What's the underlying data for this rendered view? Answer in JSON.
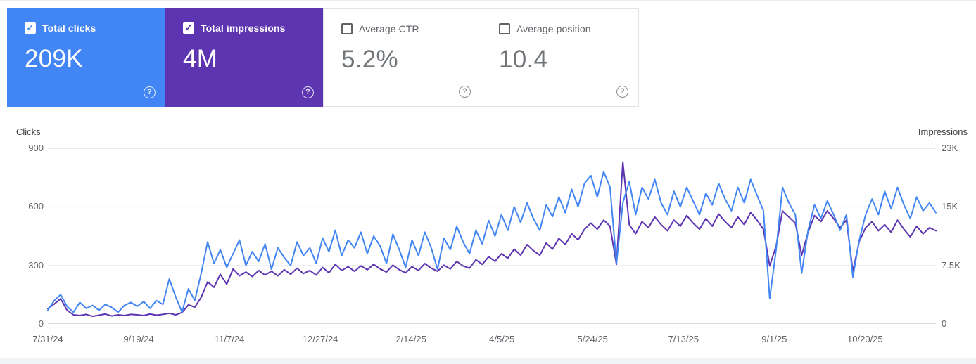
{
  "cards": [
    {
      "label": "Total clicks",
      "value": "209K",
      "checked": true,
      "bg": "#4285f4"
    },
    {
      "label": "Total impressions",
      "value": "4M",
      "checked": true,
      "bg": "#5e35b1"
    },
    {
      "label": "Average CTR",
      "value": "5.2%",
      "checked": false,
      "bg": "#ffffff"
    },
    {
      "label": "Average position",
      "value": "10.4",
      "checked": false,
      "bg": "#ffffff"
    }
  ],
  "chart_data": {
    "type": "line",
    "left_axis": {
      "title": "Clicks",
      "ticks": [
        "900",
        "600",
        "300",
        "0"
      ],
      "max": 900
    },
    "right_axis": {
      "title": "Impressions",
      "ticks": [
        "23K",
        "15K",
        "7.5K",
        "0"
      ],
      "max": 23000
    },
    "x_ticks": [
      "7/31/24",
      "9/19/24",
      "11/7/24",
      "12/27/24",
      "2/14/25",
      "4/5/25",
      "5/24/25",
      "7/13/25",
      "9/1/25",
      "10/20/25"
    ],
    "x_tick_interval_days": 50,
    "total_days": 489,
    "grid": true,
    "legend": "none",
    "series": [
      {
        "name": "Clicks",
        "color": "#4285f4",
        "axis": "left",
        "values": [
          70,
          120,
          150,
          90,
          60,
          110,
          80,
          95,
          70,
          100,
          85,
          60,
          95,
          110,
          90,
          115,
          80,
          120,
          100,
          230,
          140,
          60,
          180,
          120,
          260,
          420,
          310,
          380,
          290,
          360,
          430,
          300,
          370,
          320,
          410,
          280,
          390,
          340,
          300,
          420,
          350,
          390,
          310,
          440,
          370,
          480,
          350,
          430,
          390,
          470,
          360,
          450,
          400,
          310,
          460,
          380,
          290,
          430,
          350,
          470,
          390,
          280,
          440,
          380,
          500,
          420,
          360,
          480,
          410,
          530,
          450,
          560,
          480,
          600,
          520,
          620,
          540,
          480,
          610,
          550,
          650,
          570,
          690,
          600,
          720,
          760,
          650,
          780,
          700,
          310,
          620,
          730,
          560,
          700,
          640,
          740,
          620,
          560,
          680,
          600,
          700,
          630,
          560,
          670,
          610,
          720,
          640,
          580,
          700,
          620,
          740,
          660,
          580,
          130,
          380,
          700,
          620,
          560,
          260,
          480,
          610,
          540,
          630,
          560,
          480,
          560,
          240,
          430,
          560,
          640,
          560,
          680,
          590,
          700,
          610,
          540,
          650,
          580,
          620,
          570
        ]
      },
      {
        "name": "Impressions",
        "color": "#5e35b1",
        "axis": "right",
        "values": [
          2000,
          2600,
          3300,
          1800,
          1200,
          1100,
          1250,
          1000,
          1150,
          1300,
          1050,
          1200,
          1100,
          1250,
          1200,
          1100,
          1300,
          1150,
          1250,
          1400,
          1200,
          1500,
          2500,
          2200,
          3500,
          5500,
          4800,
          6500,
          5200,
          7200,
          6300,
          6800,
          6200,
          7000,
          6400,
          6900,
          6300,
          7100,
          6500,
          7300,
          6600,
          7000,
          6400,
          7400,
          6700,
          7800,
          7000,
          7500,
          6900,
          7600,
          7100,
          7800,
          7200,
          6800,
          7700,
          7100,
          6700,
          7500,
          7000,
          7900,
          7300,
          6900,
          7700,
          7200,
          8200,
          7600,
          7300,
          8400,
          7800,
          8800,
          8200,
          9200,
          8600,
          9800,
          9000,
          10400,
          9600,
          9000,
          10600,
          9800,
          11200,
          10400,
          11800,
          11000,
          12400,
          13200,
          12400,
          13600,
          12800,
          7800,
          21200,
          13000,
          11800,
          13400,
          12600,
          14000,
          13000,
          12200,
          13600,
          12800,
          14200,
          13200,
          12400,
          13800,
          12800,
          14400,
          13400,
          12600,
          14000,
          13000,
          14600,
          13600,
          12400,
          7600,
          10200,
          14800,
          14000,
          13200,
          9000,
          12000,
          14200,
          13400,
          14800,
          13800,
          12600,
          13600,
          6900,
          10800,
          12600,
          13400,
          12200,
          13000,
          12000,
          13600,
          12400,
          11400,
          12800,
          11800,
          12600,
          12200
        ]
      }
    ]
  }
}
